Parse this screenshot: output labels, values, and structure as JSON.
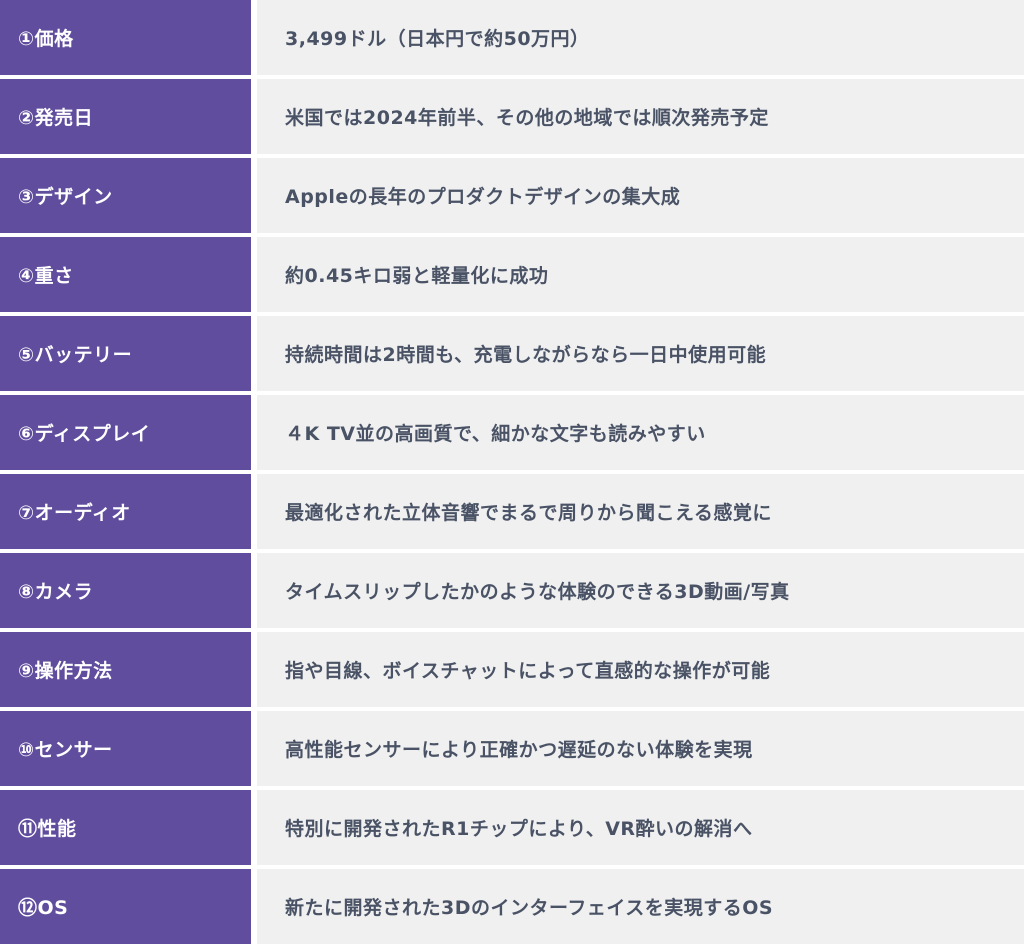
{
  "colors": {
    "label_bg": "#614d9e",
    "value_bg": "#f0f0f0",
    "value_text": "#4a5366"
  },
  "rows": [
    {
      "label": "①価格",
      "value": "3,499ドル（日本円で約50万円）"
    },
    {
      "label": "②発売日",
      "value": "米国では2024年前半、その他の地域では順次発売予定"
    },
    {
      "label": "③デザイン",
      "value": "Appleの長年のプロダクトデザインの集大成"
    },
    {
      "label": "④重さ",
      "value": "約0.45キロ弱と軽量化に成功"
    },
    {
      "label": "⑤バッテリー",
      "value": "持続時間は2時間も、充電しながらなら一日中使用可能"
    },
    {
      "label": "⑥ディスプレイ",
      "value": "４K TV並の高画質で、細かな文字も読みやすい"
    },
    {
      "label": "⑦オーディオ",
      "value": "最適化された立体音響でまるで周りから聞こえる感覚に"
    },
    {
      "label": "⑧カメラ",
      "value": "タイムスリップしたかのような体験のできる3D動画/写真"
    },
    {
      "label": "⑨操作方法",
      "value": "指や目線、ボイスチャットによって直感的な操作が可能"
    },
    {
      "label": "⑩センサー",
      "value": "高性能センサーにより正確かつ遅延のない体験を実現"
    },
    {
      "label": "⑪性能",
      "value": "特別に開発されたR1チップにより、VR酔いの解消へ"
    },
    {
      "label": "⑫OS",
      "value": "新たに開発された3Dのインターフェイスを実現するOS"
    }
  ]
}
